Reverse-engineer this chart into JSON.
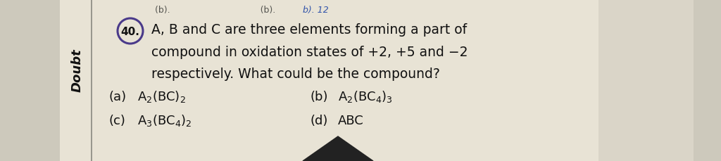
{
  "bg_color": "#cdc9bc",
  "paper_color": "#e8e3d5",
  "text_color": "#1a1a1a",
  "dark_text": "#111111",
  "question_number": "40.",
  "main_text_line1": "A, B and C are three elements forming a part of",
  "main_text_line2": "compound in oxidation states of +2, +5 and −2",
  "main_text_line3": "respectively. What could be the compound?",
  "circle_color": "#4a3a8a",
  "opt_a_label": "(a)",
  "opt_a_formula_parts": [
    [
      "A",
      0
    ],
    [
      "2",
      -1
    ],
    [
      "(BC)",
      0
    ],
    [
      "2",
      -1
    ]
  ],
  "opt_b_label": "(b)",
  "opt_b_formula_parts": [
    [
      "A",
      0
    ],
    [
      "2",
      -1
    ],
    [
      "(BC",
      0
    ],
    [
      "4",
      -1
    ],
    [
      ")",
      0
    ],
    [
      "3",
      -1
    ]
  ],
  "opt_c_label": "(c)",
  "opt_c_formula_parts": [
    [
      "A",
      0
    ],
    [
      "3",
      -1
    ],
    [
      "(BC",
      0
    ],
    [
      "4",
      -1
    ],
    [
      ")",
      0
    ],
    [
      "2",
      -1
    ]
  ],
  "opt_d_label": "(d)",
  "opt_d_text": "ABC",
  "line_color": "#888880",
  "top_partial_text": "(b).                    (b).",
  "fontsize_main": 13.5,
  "fontsize_options": 13.0
}
